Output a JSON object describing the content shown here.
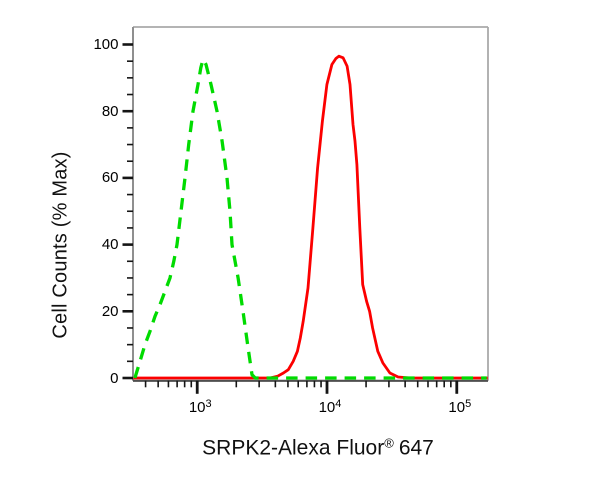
{
  "chart_data": {
    "type": "line",
    "subtype": "flow-cytometry-histogram-overlay",
    "title": "",
    "ylabel": "Cell Counts (% Max)",
    "xlabel": {
      "main": "SRPK2-Alexa Fluor",
      "sup": "®",
      "end": "647"
    },
    "xscale": "log",
    "xlim": [
      320,
      174000
    ],
    "ylim": [
      0,
      105
    ],
    "grid": false,
    "legend": "none",
    "yticks": {
      "major": [
        0,
        20,
        40,
        60,
        80,
        100
      ],
      "minor": [
        5,
        10,
        15,
        25,
        30,
        35,
        45,
        50,
        55,
        65,
        70,
        75,
        85,
        90,
        95
      ]
    },
    "xticks": {
      "major": [
        {
          "value": 1000,
          "label_base": "10",
          "label_exp": "3"
        },
        {
          "value": 10000,
          "label_base": "10",
          "label_exp": "4"
        },
        {
          "value": 100000,
          "label_base": "10",
          "label_exp": "5"
        }
      ],
      "minor": [
        400,
        500,
        600,
        700,
        800,
        900,
        2000,
        3000,
        4000,
        5000,
        6000,
        7000,
        8000,
        9000,
        20000,
        30000,
        40000,
        50000,
        60000,
        70000,
        80000,
        90000
      ]
    },
    "series": [
      {
        "name": "red-solid",
        "color": "#fc0000",
        "line_style": "solid",
        "points": [
          [
            322,
            0
          ],
          [
            3650,
            0
          ],
          [
            4150,
            0.5
          ],
          [
            4610,
            1.5
          ],
          [
            5030,
            2.5
          ],
          [
            5490,
            5
          ],
          [
            5910,
            8
          ],
          [
            6230,
            12
          ],
          [
            6560,
            17
          ],
          [
            7140,
            27
          ],
          [
            7780,
            45
          ],
          [
            8470,
            63
          ],
          [
            9220,
            77
          ],
          [
            9980,
            88
          ],
          [
            10900,
            94
          ],
          [
            11700,
            95.8
          ],
          [
            12340,
            96.5
          ],
          [
            13300,
            96
          ],
          [
            14280,
            93.5
          ],
          [
            15050,
            88
          ],
          [
            15860,
            76
          ],
          [
            16420,
            71
          ],
          [
            17000,
            64
          ],
          [
            17900,
            45
          ],
          [
            18850,
            28
          ],
          [
            20200,
            23
          ],
          [
            21300,
            20
          ],
          [
            22470,
            15
          ],
          [
            24620,
            8
          ],
          [
            26970,
            4.5
          ],
          [
            30550,
            1.5
          ],
          [
            35300,
            0.3
          ],
          [
            43700,
            0
          ],
          [
            173000,
            0
          ]
        ]
      },
      {
        "name": "green-dashed",
        "color": "#00db00",
        "line_style": "dashed",
        "points": [
          [
            331,
            0
          ],
          [
            362,
            5
          ],
          [
            396,
            10
          ],
          [
            433,
            14
          ],
          [
            473,
            18.5
          ],
          [
            517,
            22
          ],
          [
            565,
            26
          ],
          [
            617,
            30
          ],
          [
            660,
            35
          ],
          [
            699,
            40
          ],
          [
            750,
            50
          ],
          [
            805,
            60
          ],
          [
            860,
            70
          ],
          [
            928,
            80
          ],
          [
            1014,
            88
          ],
          [
            1065,
            93
          ],
          [
            1108,
            95.5
          ],
          [
            1169,
            94
          ],
          [
            1278,
            88
          ],
          [
            1421,
            80
          ],
          [
            1554,
            71
          ],
          [
            1697,
            60
          ],
          [
            1790,
            50
          ],
          [
            1855,
            40
          ],
          [
            2064,
            30
          ],
          [
            2254,
            20
          ],
          [
            2465,
            9
          ],
          [
            2645,
            1
          ],
          [
            2800,
            0
          ],
          [
            170000,
            0
          ]
        ]
      }
    ]
  }
}
